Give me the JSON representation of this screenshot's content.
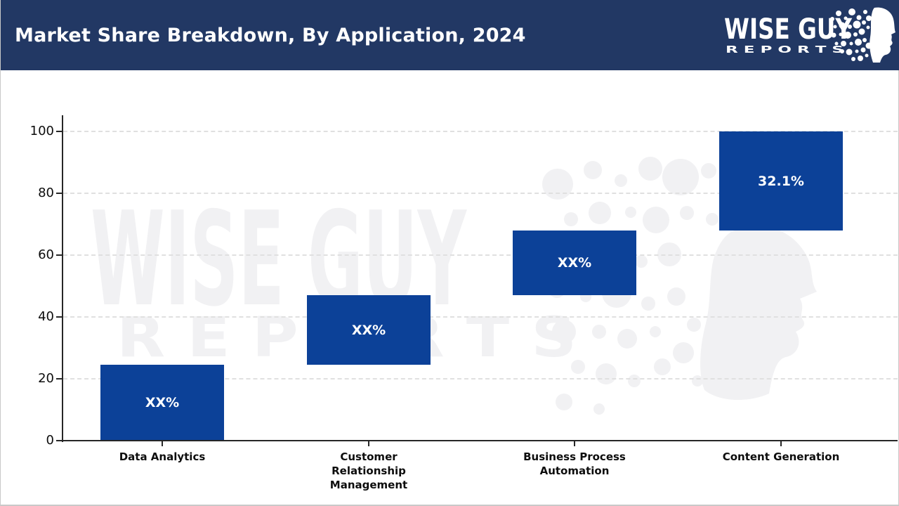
{
  "header": {
    "title": "Market Share Breakdown, By Application, 2024",
    "logo": {
      "brand_top": "WISE GUY",
      "brand_bottom": "R E P O R T S"
    }
  },
  "watermark": {
    "text_large": "WISE GUY",
    "text_small": "R E P O R T S"
  },
  "chart_data": {
    "type": "bar",
    "subtype": "floating-waterfall-segments",
    "title": "Market Share Breakdown, By Application, 2024",
    "categories": [
      "Data Analytics",
      "Customer Relationship Management",
      "Business Process Automation",
      "Content Generation"
    ],
    "category_label_lines": [
      [
        "Data Analytics"
      ],
      [
        "Customer",
        "Relationship",
        "Management"
      ],
      [
        "Business Process",
        "Automation"
      ],
      [
        "Content Generation"
      ]
    ],
    "series": [
      {
        "name": "Market Share (%)",
        "segments": [
          {
            "category": "Data Analytics",
            "start": 0,
            "end": 24.5,
            "label": "XX%"
          },
          {
            "category": "Customer Relationship Management",
            "start": 24.5,
            "end": 47.0,
            "label": "XX%"
          },
          {
            "category": "Business Process Automation",
            "start": 47.0,
            "end": 67.9,
            "label": "XX%"
          },
          {
            "category": "Content Generation",
            "start": 67.9,
            "end": 100.0,
            "label": "32.1%"
          }
        ]
      }
    ],
    "ylim": [
      0,
      105
    ],
    "yticks": [
      0,
      20,
      40,
      60,
      80,
      100
    ],
    "grid": "horizontal-dashed",
    "legend": "none",
    "bar_color": "#0c4198",
    "bar_label_color": "#ffffff"
  },
  "colors": {
    "header_bg": "#223864",
    "bar": "#0c4198",
    "grid": "#e0e0e0",
    "axis": "#262626",
    "watermark": "#f1f1f3",
    "logo_text": "#ffffff"
  }
}
